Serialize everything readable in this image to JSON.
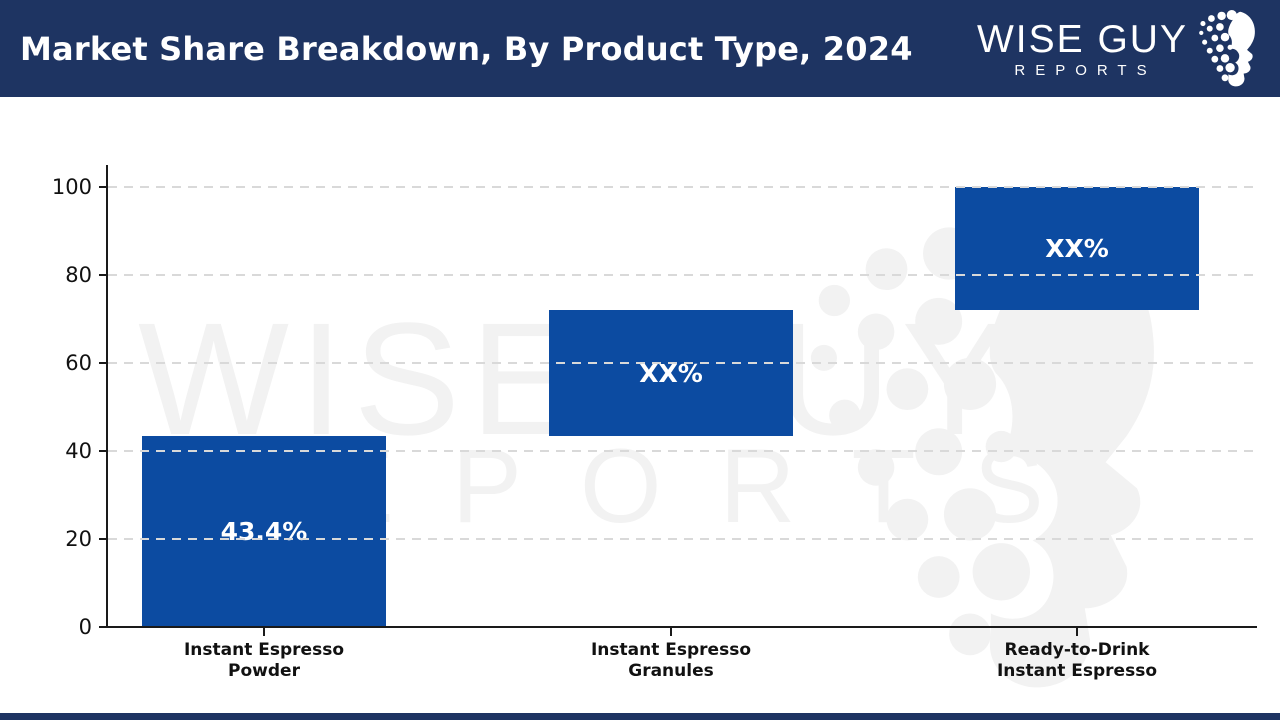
{
  "header": {
    "title": "Market Share Breakdown, By Product Type, 2024",
    "bg_color": "#1e3462",
    "logo": {
      "line1": "WISE GUY",
      "line2": "REPORTS"
    }
  },
  "watermark": {
    "line1": "WISE GUY",
    "line2": "REPORTS"
  },
  "footer": {
    "bg_color": "#1e3462"
  },
  "chart_data": {
    "type": "bar",
    "subtype": "waterfall",
    "title": "Market Share Breakdown, By Product Type, 2024",
    "categories": [
      "Instant Espresso\nPowder",
      "Instant Espresso\nGranules",
      "Ready-to-Drink\nInstant Espresso"
    ],
    "segments": [
      {
        "category": "Instant Espresso Powder",
        "start": 0,
        "end": 43.4,
        "label": "43.4%"
      },
      {
        "category": "Instant Espresso Granules",
        "start": 43.4,
        "end": 72,
        "label": "XX%"
      },
      {
        "category": "Ready-to-Drink Instant Espresso",
        "start": 72,
        "end": 100,
        "label": "XX%"
      }
    ],
    "ylim": [
      0,
      100
    ],
    "yticks": [
      0,
      20,
      40,
      60,
      80,
      100
    ],
    "grid": "horizontal-dashed",
    "legend": "none",
    "bar_color": "#0c4ba1",
    "bar_label_color": "#ffffff",
    "axis_color": "#1a1a1a",
    "gridline_color": "#d9d9d9"
  }
}
